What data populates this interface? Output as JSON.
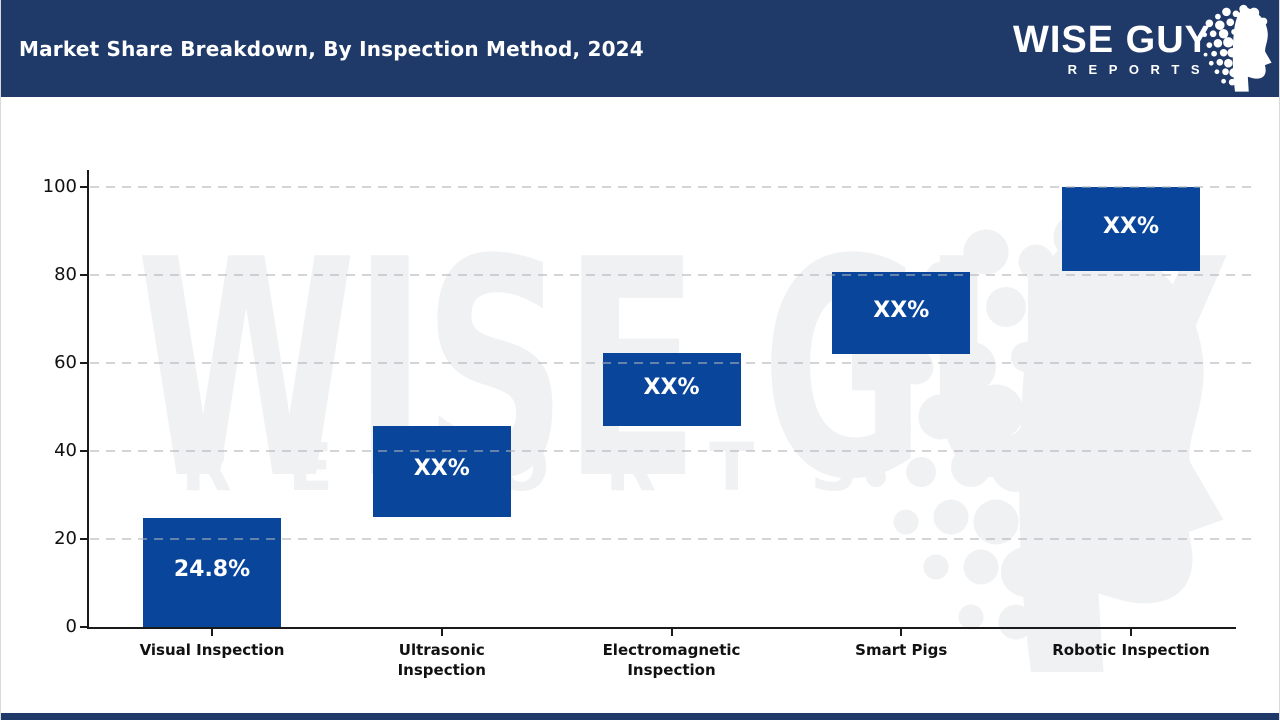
{
  "header": {
    "title": "Market Share Breakdown, By Inspection Method, 2024",
    "logo": {
      "line1": "WISE GUY",
      "line2": "REPORTS"
    }
  },
  "watermark": {
    "line1": "WISE GUY",
    "line2": "REPORTS"
  },
  "colors": {
    "header_bg": "#1F3A68",
    "footer_bg": "#1F3A68",
    "bar": "#09459A",
    "bar_label": "#FFFFFF",
    "axis": "#1A1A1A",
    "watermark": "#F0F1F3"
  },
  "chart_data": {
    "type": "bar",
    "subtype": "waterfall",
    "title": "Market Share Breakdown, By Inspection Method, 2024",
    "categories": [
      "Visual Inspection",
      "Ultrasonic Inspection",
      "Electromagnetic Inspection",
      "Smart Pigs",
      "Robotic Inspection"
    ],
    "category_lines": [
      [
        "Visual Inspection"
      ],
      [
        "Ultrasonic",
        "Inspection"
      ],
      [
        "Electromagnetic",
        "Inspection"
      ],
      [
        "Smart Pigs"
      ],
      [
        "Robotic Inspection"
      ]
    ],
    "bars": [
      {
        "category": "Visual Inspection",
        "start": 0,
        "end": 24.8,
        "label": "24.8%"
      },
      {
        "category": "Ultrasonic Inspection",
        "start": 25,
        "end": 45.7,
        "label": "XX%"
      },
      {
        "category": "Electromagnetic Inspection",
        "start": 45.7,
        "end": 62.2,
        "label": "XX%"
      },
      {
        "category": "Smart Pigs",
        "start": 62,
        "end": 80.7,
        "label": "XX%"
      },
      {
        "category": "Robotic Inspection",
        "start": 81,
        "end": 100,
        "label": "XX%"
      }
    ],
    "yticks": [
      0,
      20,
      40,
      60,
      80,
      100
    ],
    "ylim": [
      0,
      104
    ],
    "xlabel": "",
    "ylabel": "",
    "grid": "horizontal-dashed-over-bars",
    "legend": "none",
    "bar_color": "#09459A",
    "bar_label_color": "#FFFFFF"
  }
}
